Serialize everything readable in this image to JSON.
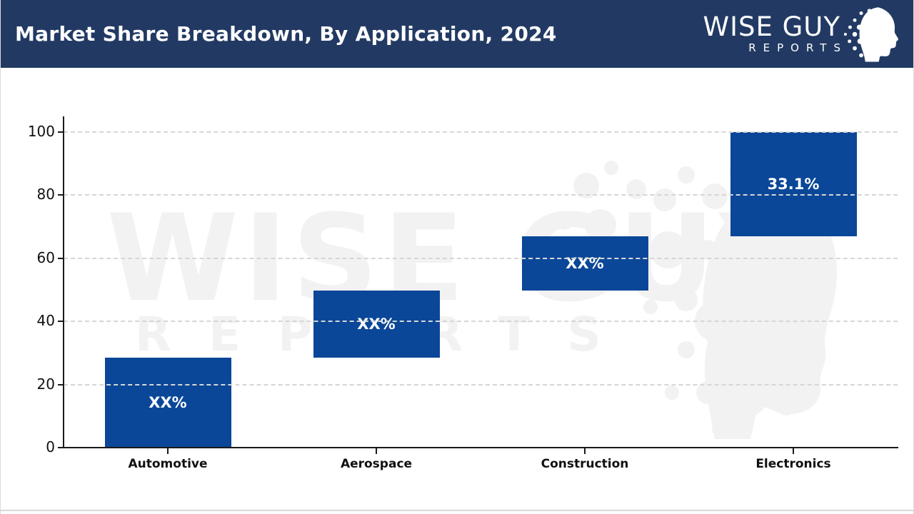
{
  "header": {
    "title": "Market Share Breakdown, By Application, 2024",
    "background_color": "#223A63",
    "logo": {
      "name": "WISE GUY",
      "subtitle": "REPORTS"
    }
  },
  "watermark": {
    "line1": "WISE GUY",
    "line2": "REPORTS"
  },
  "chart_data": {
    "type": "bar",
    "subtype": "floating-segment-waterfall",
    "title": "Market Share Breakdown, By Application, 2024",
    "categories": [
      "Automotive",
      "Aerospace",
      "Construction",
      "Electronics"
    ],
    "segments": [
      {
        "category": "Automotive",
        "start": 0,
        "end": 28.4,
        "label": "XX%"
      },
      {
        "category": "Aerospace",
        "start": 28.4,
        "end": 49.8,
        "label": "XX%"
      },
      {
        "category": "Construction",
        "start": 49.8,
        "end": 66.9,
        "label": "XX%"
      },
      {
        "category": "Electronics",
        "start": 66.9,
        "end": 100,
        "label": "33.1%"
      }
    ],
    "xlabel": "",
    "ylabel": "",
    "ylim": [
      0,
      100
    ],
    "yticks": [
      0,
      20,
      40,
      60,
      80,
      100
    ],
    "grid": "horizontal-dashed",
    "legend": "none",
    "bar_color": "#0B4798",
    "bar_label_color": "#FFFFFF",
    "axis_color": "#1a1a1a",
    "gridline_color": "#d6d6d6"
  }
}
